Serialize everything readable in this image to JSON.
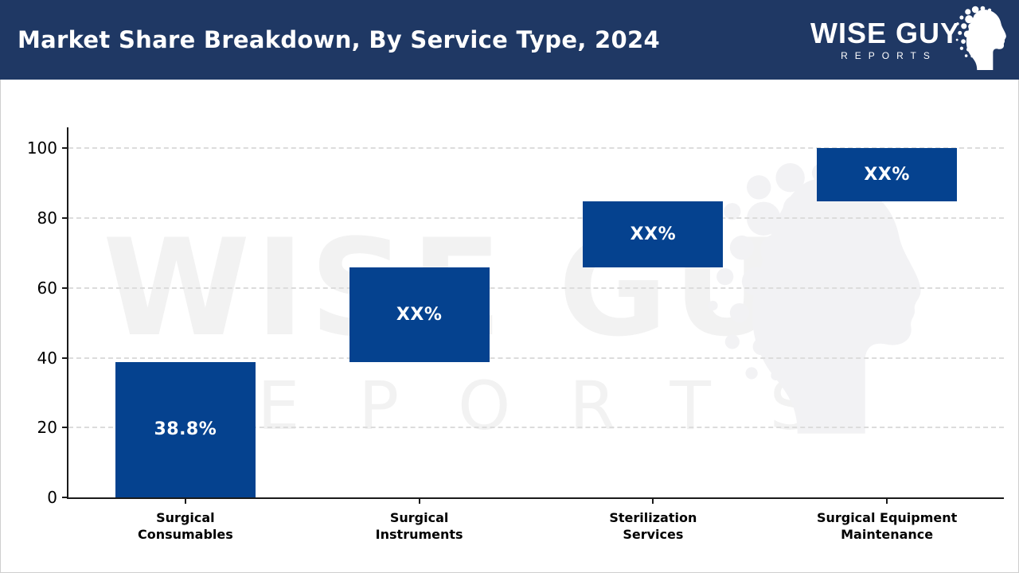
{
  "header": {
    "title": "Market Share Breakdown, By Service Type, 2024",
    "logo": {
      "wordmark": "WISE GUY",
      "subtitle": "REPORTS"
    }
  },
  "watermark": {
    "wordmark": "WISE GUY",
    "subtitle": "REPORTS"
  },
  "chart_data": {
    "type": "bar",
    "subtype": "waterfall",
    "title": "Market Share Breakdown, By Service Type, 2024",
    "categories": [
      "Surgical\nConsumables",
      "Surgical\nInstruments",
      "Sterilization\nServices",
      "Surgical Equipment\nMaintenance"
    ],
    "segments": [
      {
        "category": "Surgical Consumables",
        "start": 0,
        "end": 38.8,
        "label": "38.8%"
      },
      {
        "category": "Surgical Instruments",
        "start": 38.8,
        "end": 65.8,
        "label": "XX%"
      },
      {
        "category": "Sterilization Services",
        "start": 65.8,
        "end": 84.9,
        "label": "XX%"
      },
      {
        "category": "Surgical Equipment Maintenance",
        "start": 84.9,
        "end": 100,
        "label": "XX%"
      }
    ],
    "yticks": [
      0,
      20,
      40,
      60,
      80,
      100
    ],
    "ylim": [
      0,
      106
    ],
    "xlabel": "",
    "ylabel": "",
    "grid": "horizontal-dashed",
    "legend": false,
    "bar_color": "#05428f",
    "bar_label_color": "#ffffff",
    "header_color": "#1f3864",
    "watermark_color": "#f2f2f2"
  }
}
